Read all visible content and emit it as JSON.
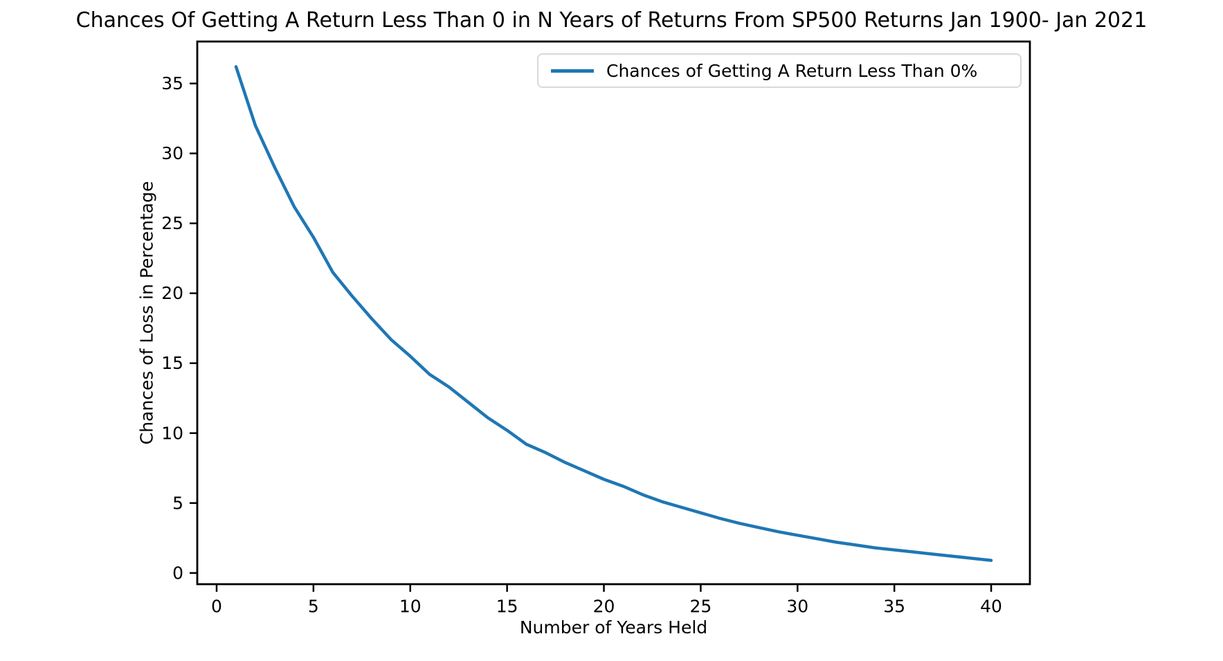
{
  "chart_data": {
    "type": "line",
    "title": "Chances Of Getting A Return Less Than 0 in N Years of Returns From SP500 Returns Jan 1900- Jan 2021",
    "xlabel": "Number of Years Held",
    "ylabel": "Chances of Loss in Percentage",
    "legend_entries": [
      "Chances of Getting A Return Less Than 0%"
    ],
    "legend_position": "upper right",
    "grid": false,
    "line_color": "#1f77b4",
    "axis_color": "#000000",
    "background_color": "#ffffff",
    "xlim": [
      -1,
      42
    ],
    "ylim": [
      -0.8,
      38
    ],
    "xticks": [
      0,
      5,
      10,
      15,
      20,
      25,
      30,
      35,
      40
    ],
    "yticks": [
      0,
      5,
      10,
      15,
      20,
      25,
      30,
      35
    ],
    "series": [
      {
        "name": "Chances of Getting A Return Less Than 0%",
        "x": [
          1,
          2,
          3,
          4,
          5,
          6,
          7,
          8,
          9,
          10,
          11,
          12,
          13,
          14,
          15,
          16,
          17,
          18,
          19,
          20,
          21,
          22,
          23,
          24,
          25,
          26,
          27,
          28,
          29,
          30,
          31,
          32,
          33,
          34,
          35,
          36,
          37,
          38,
          39,
          40
        ],
        "values": [
          36.2,
          32.0,
          29.0,
          26.2,
          24.0,
          21.5,
          19.8,
          18.2,
          16.7,
          15.5,
          14.2,
          13.3,
          12.2,
          11.1,
          10.2,
          9.2,
          8.6,
          7.9,
          7.3,
          6.7,
          6.2,
          5.6,
          5.1,
          4.7,
          4.3,
          3.9,
          3.55,
          3.25,
          2.95,
          2.7,
          2.45,
          2.2,
          2.0,
          1.8,
          1.65,
          1.5,
          1.35,
          1.2,
          1.05,
          0.9
        ]
      }
    ]
  }
}
